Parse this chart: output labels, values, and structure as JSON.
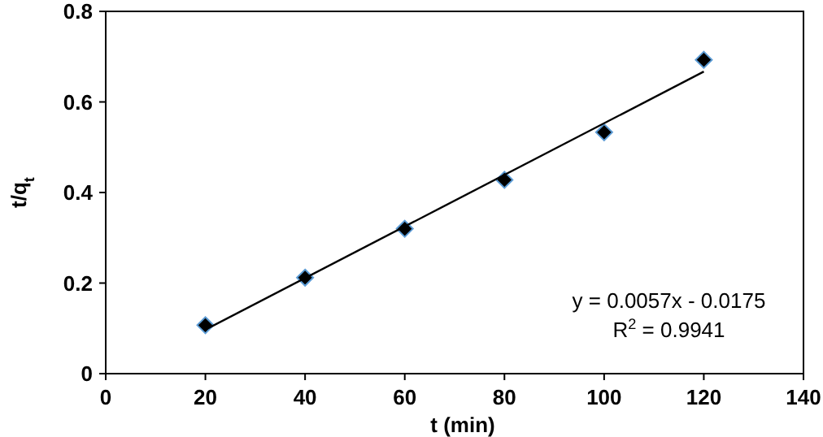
{
  "chart_data": {
    "type": "scatter",
    "xlabel": "t (min)",
    "ylabel": "t/q$_{t}$",
    "annotations": [
      "y = 0.0057x - 0.0175",
      "R$^{2}$ = 0.9941"
    ],
    "series": [
      {
        "color": "#000000",
        "marker": "diamond",
        "x": [
          20,
          40,
          60,
          80,
          100,
          120
        ],
        "values": [
          0.107,
          0.212,
          0.32,
          0.428,
          0.533,
          0.693
        ]
      },
      {
        "type": "line",
        "color": "#000000",
        "marker": "none",
        "line_style": "solid",
        "x": [
          20,
          120
        ],
        "values": [
          0.097,
          0.667
        ]
      }
    ],
    "xlim": [
      0,
      140
    ],
    "xticks": [
      0,
      20,
      40,
      60,
      80,
      100,
      120,
      140
    ],
    "ylim": [
      0,
      0.8
    ],
    "yticks": [
      0,
      0.2,
      0.4,
      0.6,
      0.8
    ],
    "grid": false
  }
}
